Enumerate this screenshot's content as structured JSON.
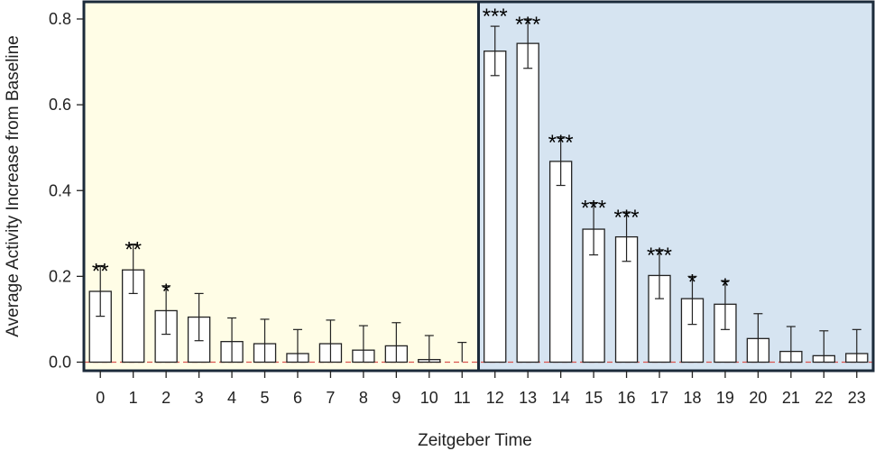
{
  "chart_data": {
    "type": "bar",
    "title": "",
    "xlabel": "Zeitgeber Time",
    "ylabel": "Average Activity Increase from Baseline",
    "ylim": [
      -0.02,
      0.84
    ],
    "yticks": [
      0.0,
      0.2,
      0.4,
      0.6,
      0.8
    ],
    "ytick_labels": [
      "0.0",
      "0.2",
      "0.4",
      "0.6",
      "0.8"
    ],
    "grid": false,
    "baseline": {
      "value": 0.0,
      "color": "#d9534f",
      "style": "dashed"
    },
    "phases": [
      {
        "from": 0,
        "to": 11,
        "color": "#fffde6"
      },
      {
        "from": 12,
        "to": 23,
        "color": "#d6e4f1"
      }
    ],
    "bar_color": "#ffffff",
    "bar_edge_color": "#222222",
    "frame_color": "#1b2a3a",
    "categories": [
      "0",
      "1",
      "2",
      "3",
      "4",
      "5",
      "6",
      "7",
      "8",
      "9",
      "10",
      "11",
      "12",
      "13",
      "14",
      "15",
      "16",
      "17",
      "18",
      "19",
      "20",
      "21",
      "22",
      "23"
    ],
    "values": [
      0.165,
      0.215,
      0.12,
      0.105,
      0.048,
      0.043,
      0.02,
      0.043,
      0.028,
      0.038,
      0.006,
      0.0,
      0.725,
      0.743,
      0.468,
      0.31,
      0.292,
      0.202,
      0.148,
      0.135,
      0.055,
      0.025,
      0.015,
      0.02
    ],
    "error_upper": [
      0.225,
      0.275,
      0.178,
      0.16,
      0.103,
      0.1,
      0.076,
      0.098,
      0.085,
      0.092,
      0.062,
      0.046,
      0.783,
      0.8,
      0.525,
      0.372,
      0.35,
      0.262,
      0.2,
      0.19,
      0.113,
      0.083,
      0.073,
      0.076
    ],
    "error_lower": [
      0.107,
      0.16,
      0.065,
      0.05,
      0.0,
      0.0,
      0.0,
      0.0,
      0.0,
      0.0,
      0.0,
      0.0,
      0.668,
      0.685,
      0.412,
      0.25,
      0.235,
      0.148,
      0.088,
      0.076,
      0.0,
      0.0,
      0.0,
      0.0
    ],
    "significance": [
      "**",
      "**",
      "*",
      "",
      "",
      "",
      "",
      "",
      "",
      "",
      "",
      "",
      "***",
      "***",
      "***",
      "***",
      "***",
      "***",
      "*",
      "*",
      "",
      "",
      "",
      ""
    ]
  }
}
